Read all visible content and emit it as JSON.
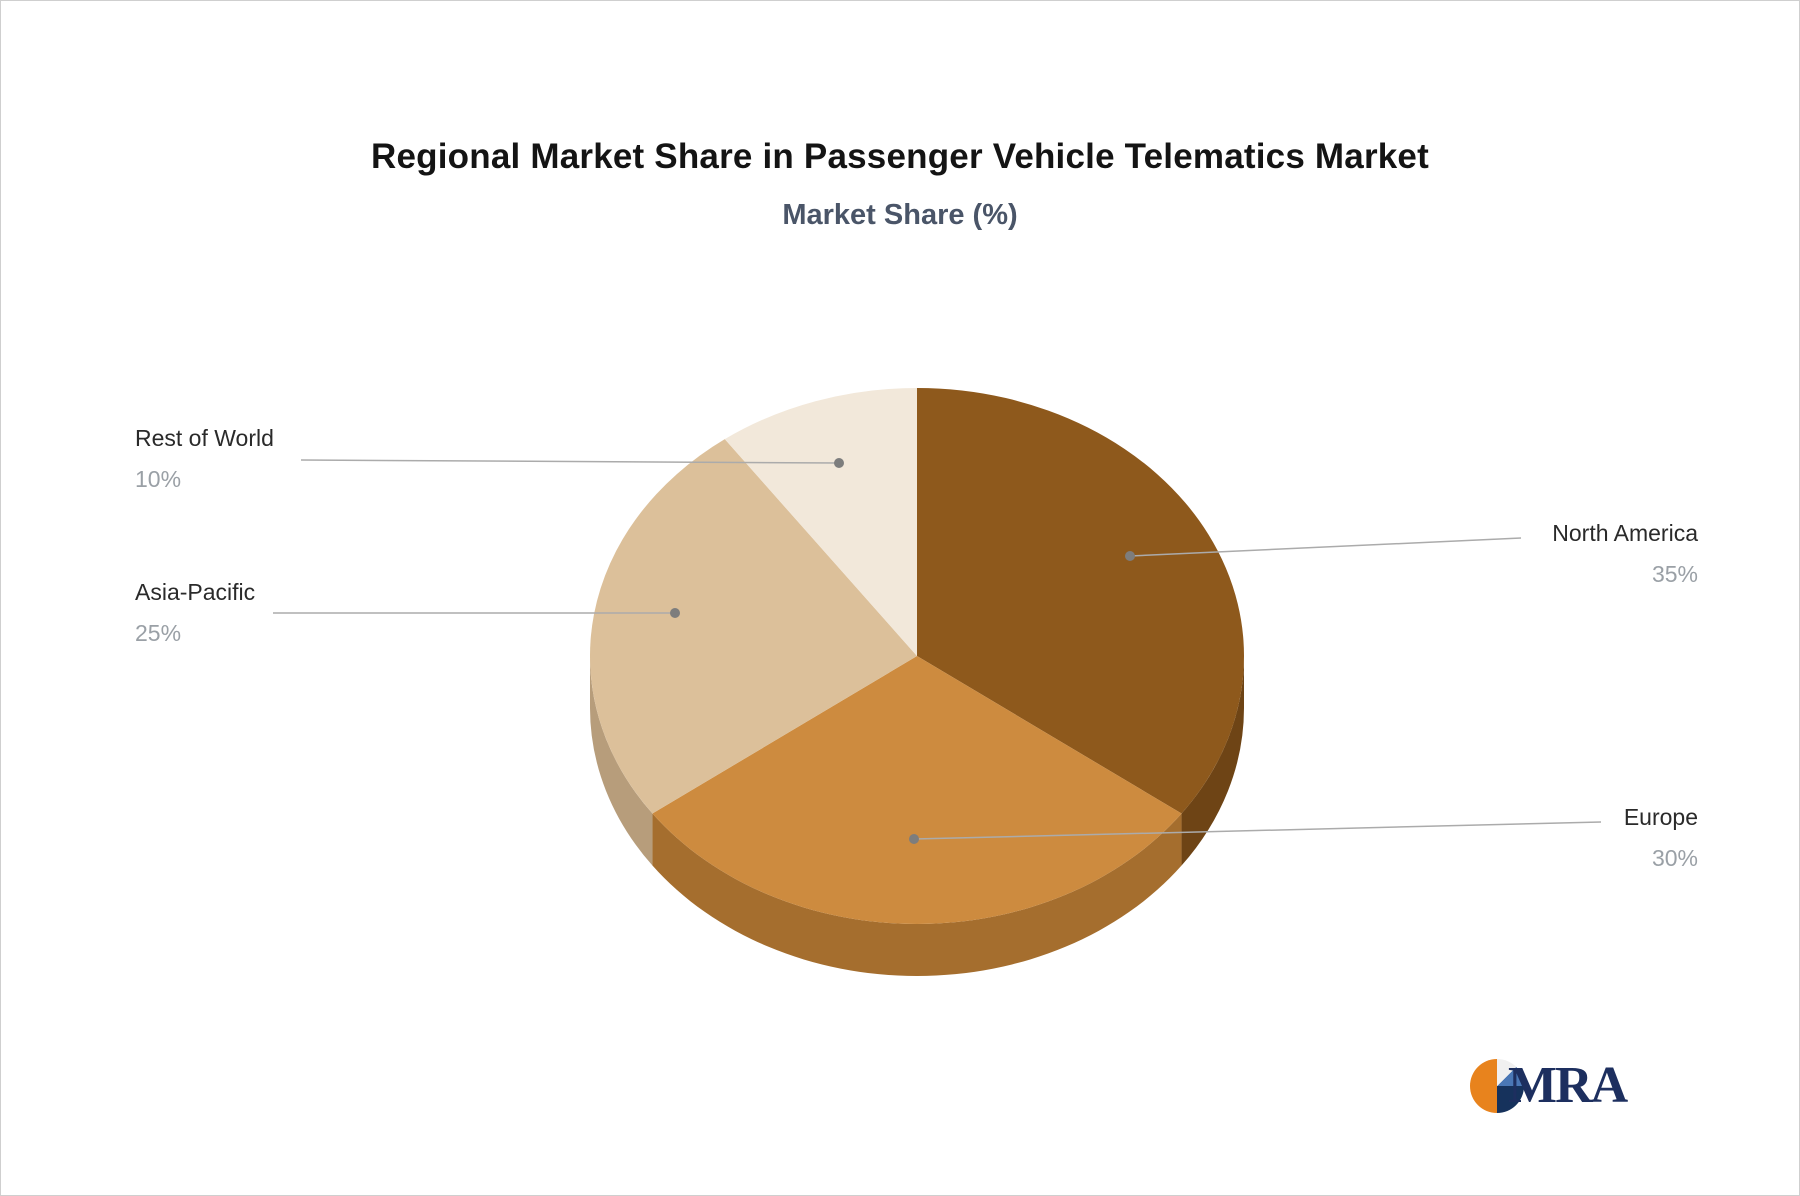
{
  "page": {
    "title": "Regional Market Share in Passenger Vehicle Telematics Market",
    "subtitle": "Market Share (%)"
  },
  "chart_data": {
    "type": "pie",
    "style": "3d",
    "title": "Regional Market Share in Passenger Vehicle Telematics Market",
    "subtitle": "Market Share (%)",
    "unit": "%",
    "start_angle_deg": 0,
    "direction": "clockwise",
    "legend": "none",
    "label_style": "callout",
    "labels": [
      "North America",
      "Europe",
      "Asia-Pacific",
      "Rest of World"
    ],
    "values": [
      35,
      30,
      25,
      10
    ],
    "value_labels": [
      "35%",
      "30%",
      "25%",
      "10%"
    ],
    "colors": [
      "#8e591c",
      "#cd8b3f",
      "#dcc09a",
      "#f2e8da"
    ],
    "side_colors": [
      "#6e4415",
      "#a56e2e",
      "#b79d7b",
      "#c9b28c"
    ]
  },
  "logo": {
    "text": "MRA",
    "colors": {
      "orange": "#e8831d",
      "navy": "#16325c",
      "blue": "#4a77b5",
      "light": "#f0f0f0"
    }
  }
}
